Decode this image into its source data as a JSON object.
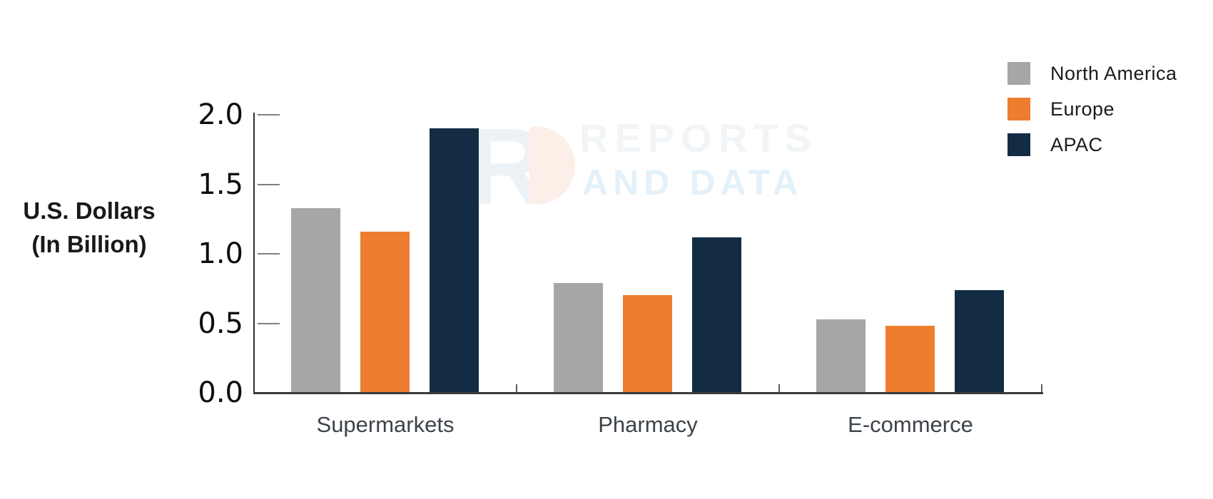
{
  "chart_data": {
    "type": "bar",
    "title": "",
    "categories": [
      "Supermarkets",
      "Pharmacy",
      "E-commerce"
    ],
    "series": [
      {
        "name": "North America",
        "color": "#a6a6a6",
        "values": [
          1.33,
          0.79,
          0.53
        ]
      },
      {
        "name": "Europe",
        "color": "#ee7d30",
        "values": [
          1.16,
          0.7,
          0.48
        ]
      },
      {
        "name": "APAC",
        "color": "#132c44",
        "values": [
          1.9,
          1.12,
          0.74
        ]
      }
    ],
    "ylabel_line1": "U.S. Dollars",
    "ylabel_line2": "(In Billion)",
    "ylim": [
      0.0,
      2.0
    ],
    "yticks": [
      0.0,
      0.5,
      1.0,
      1.5,
      2.0
    ],
    "ytick_labels": [
      "0.0",
      "0.5",
      "1.0",
      "1.5",
      "2.0"
    ],
    "grid": false,
    "legend_position": "top-right"
  },
  "legend": {
    "items": [
      {
        "label": "North America",
        "color": "#a6a6a6"
      },
      {
        "label": "Europe",
        "color": "#ee7d30"
      },
      {
        "label": "APAC",
        "color": "#132c44"
      }
    ]
  },
  "watermark": {
    "logo_r_text": "R",
    "logo_r_color": "#edf2f6",
    "logo_d_color": "#fcefe7",
    "line1": "REPORTS",
    "line1_color": "#f1f5f8",
    "line2": "AND DATA",
    "line2_color": "#e3f1fa"
  }
}
